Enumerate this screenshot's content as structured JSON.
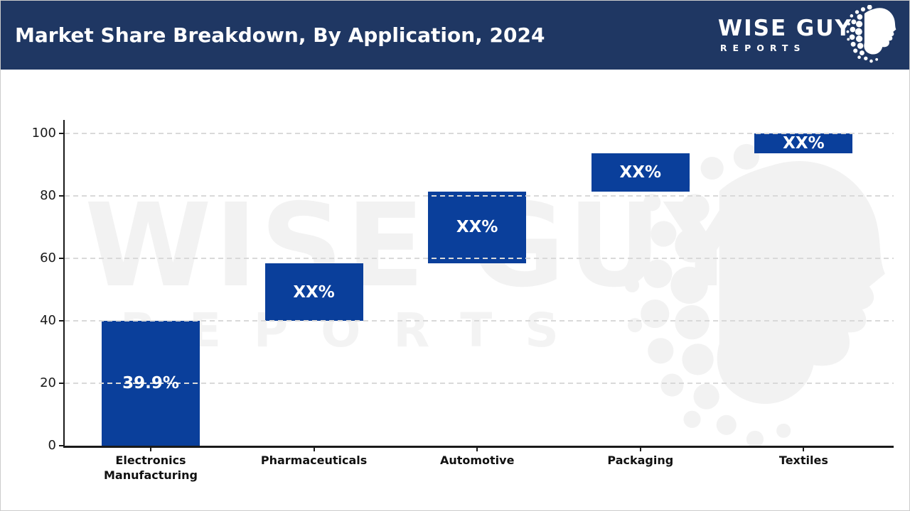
{
  "header": {
    "title": "Market Share Breakdown, By Application, 2024",
    "logo": {
      "line1": "WISE GUY",
      "line2": "REPORTS"
    }
  },
  "watermark": {
    "line1": "WISE GUY",
    "line2": "REPORTS"
  },
  "colors": {
    "header_bg": "#1f3763",
    "bar": "#0a3f9b",
    "grid": "#d9d9d9",
    "axis": "#1a1a1a",
    "bar_label": "#ffffff",
    "watermark": "#f2f2f2",
    "background": "#ffffff"
  },
  "chart_data": {
    "type": "bar",
    "subtype": "waterfall",
    "title": "Market Share Breakdown, By Application, 2024",
    "categories": [
      "Electronics Manufacturing",
      "Pharmaceuticals",
      "Automotive",
      "Packaging",
      "Textiles"
    ],
    "segments": [
      {
        "category": "Electronics Manufacturing",
        "start": 0,
        "end": 39.9,
        "size": 39.9,
        "label": "39.9%"
      },
      {
        "category": "Pharmaceuticals",
        "start": 39.9,
        "end": 58.5,
        "size": 18.6,
        "label": "XX%"
      },
      {
        "category": "Automotive",
        "start": 58.5,
        "end": 81.3,
        "size": 22.8,
        "label": "XX%"
      },
      {
        "category": "Packaging",
        "start": 81.3,
        "end": 93.6,
        "size": 12.3,
        "label": "XX%"
      },
      {
        "category": "Textiles",
        "start": 93.6,
        "end": 100,
        "size": 6.4,
        "label": "XX%"
      }
    ],
    "yticks": [
      0,
      20,
      40,
      60,
      80,
      100
    ],
    "ylim": [
      0,
      104
    ],
    "xlabel": "",
    "ylabel": "",
    "grid": "horizontal-dashed",
    "gridlines_above_bars": true,
    "legend": "none"
  }
}
